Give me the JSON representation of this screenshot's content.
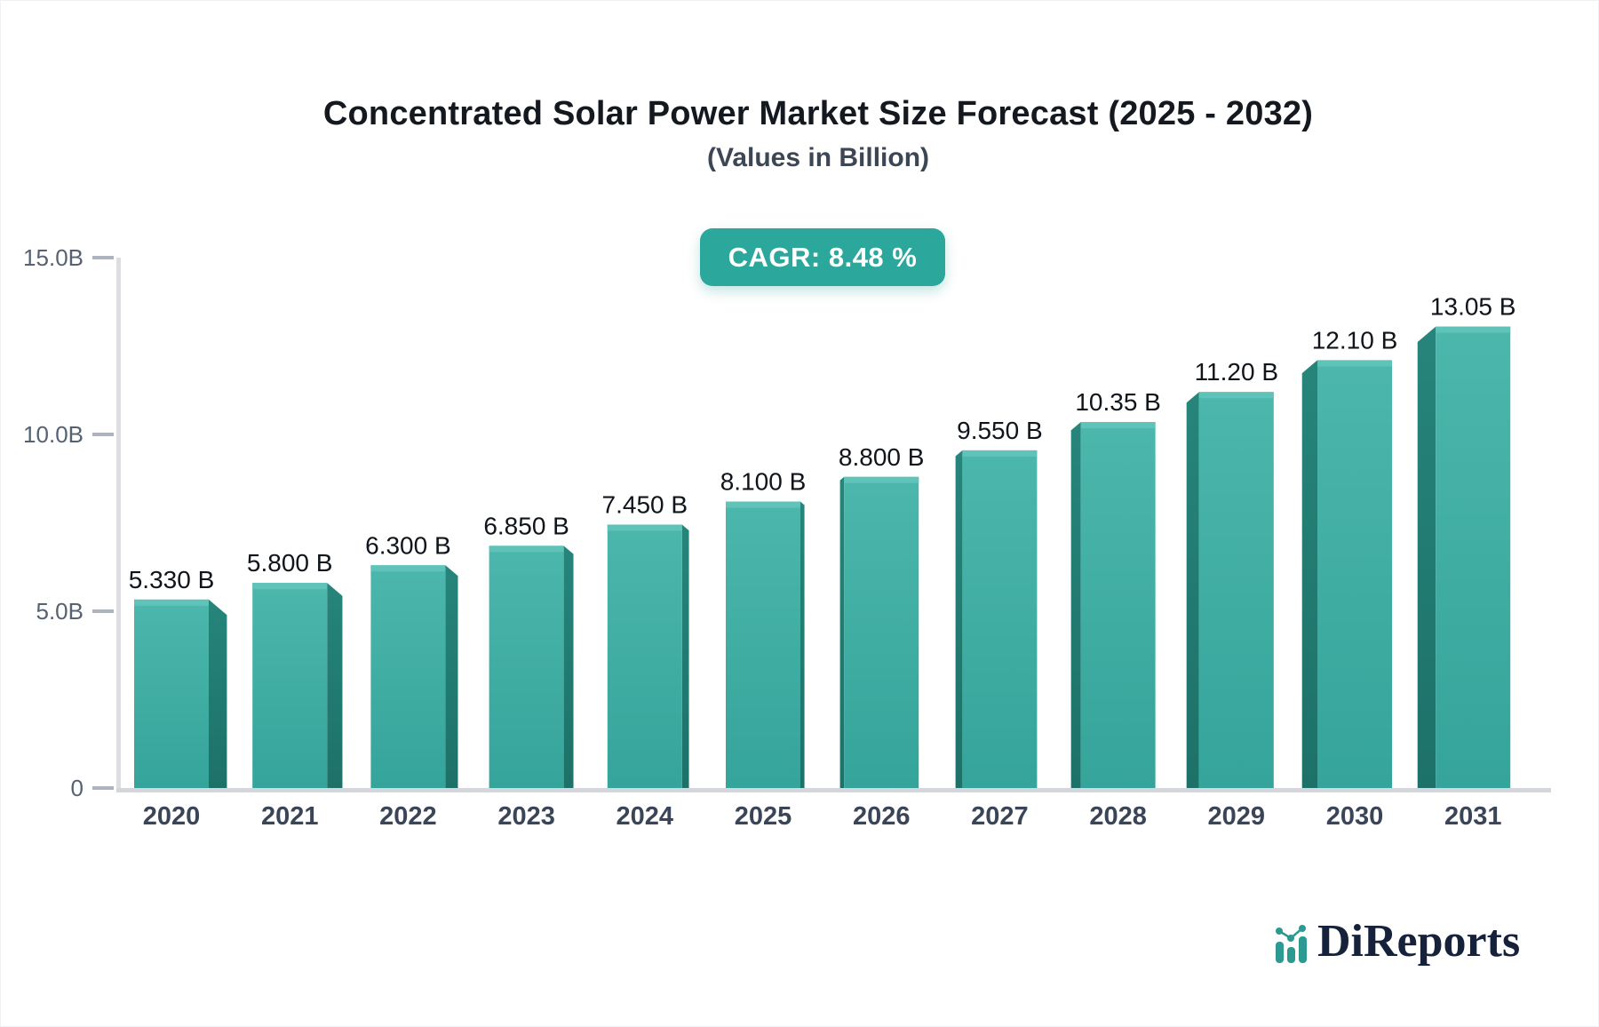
{
  "header": {
    "title": "Concentrated Solar Power Market Size Forecast (2025 - 2032)",
    "subtitle": "(Values in Billion)",
    "cagr_badge": "CAGR: 8.48 %"
  },
  "branding": {
    "logo_text": "DiReports",
    "logo_icon": "trend-bars-icon"
  },
  "colors": {
    "badge_bg": "#2BA79B",
    "bar_face_top": "#4CB7AC",
    "bar_face_bottom": "#35A49A",
    "bar_top_strip": "#5FC3B9",
    "bar_side_top": "#26857B",
    "bar_side_bottom": "#1D7168",
    "axis_line": "#DCDEE3",
    "baseline": "#D3D6DB",
    "tick_dash": "#AEB4BF",
    "ytick_text": "#566172",
    "xtick_text": "#3A4557",
    "value_text": "#10151C",
    "title_text": "#14191F",
    "subtitle_text": "#3D4654",
    "logo_navy": "#16223C",
    "logo_teal": "#2D9A91"
  },
  "chart_data": {
    "type": "bar",
    "title": "Concentrated Solar Power Market Size Forecast (2025 - 2032)",
    "subtitle": "(Values in Billion)",
    "annotation": "CAGR: 8.48 %",
    "categories": [
      "2020",
      "2021",
      "2022",
      "2023",
      "2024",
      "2025",
      "2026",
      "2027",
      "2028",
      "2029",
      "2030",
      "2031"
    ],
    "values": [
      5.33,
      5.8,
      6.3,
      6.85,
      7.45,
      8.1,
      8.8,
      9.55,
      10.35,
      11.2,
      12.1,
      13.05
    ],
    "value_labels": [
      "5.330 B",
      "5.800 B",
      "6.300 B",
      "6.850 B",
      "7.450 B",
      "8.100 B",
      "8.800 B",
      "9.550 B",
      "10.35 B",
      "11.20 B",
      "12.10 B",
      "13.05 B"
    ],
    "xlabel": "",
    "ylabel": "",
    "ylim": [
      0,
      15
    ],
    "yticks": [
      {
        "value": 15,
        "label": "15.0B"
      },
      {
        "value": 10,
        "label": "10.0B"
      },
      {
        "value": 5,
        "label": "5.0B"
      },
      {
        "value": 0,
        "label": "0"
      }
    ],
    "grid": false,
    "legend": false,
    "style": "3d-perspective-bars"
  }
}
